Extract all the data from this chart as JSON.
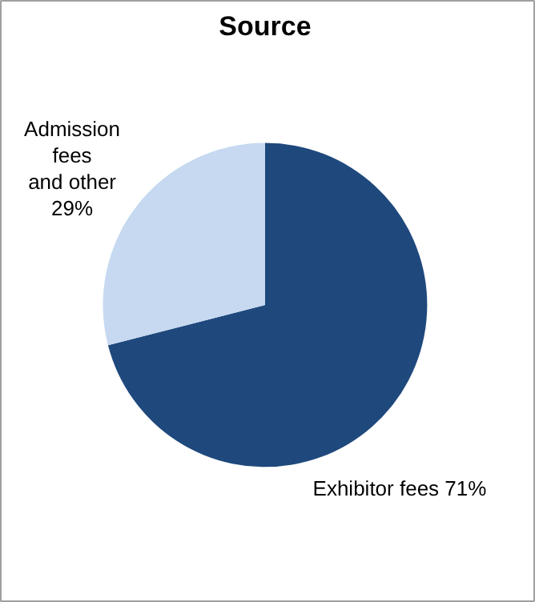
{
  "chart_data": {
    "type": "pie",
    "title": "Source",
    "categories": [
      "Exhibitor fees",
      "Admission\nfees\nand other"
    ],
    "values": [
      71,
      29
    ],
    "value_labels": [
      "71%",
      "29%"
    ],
    "colors": [
      "#1f497d",
      "#c6d9f1"
    ]
  }
}
